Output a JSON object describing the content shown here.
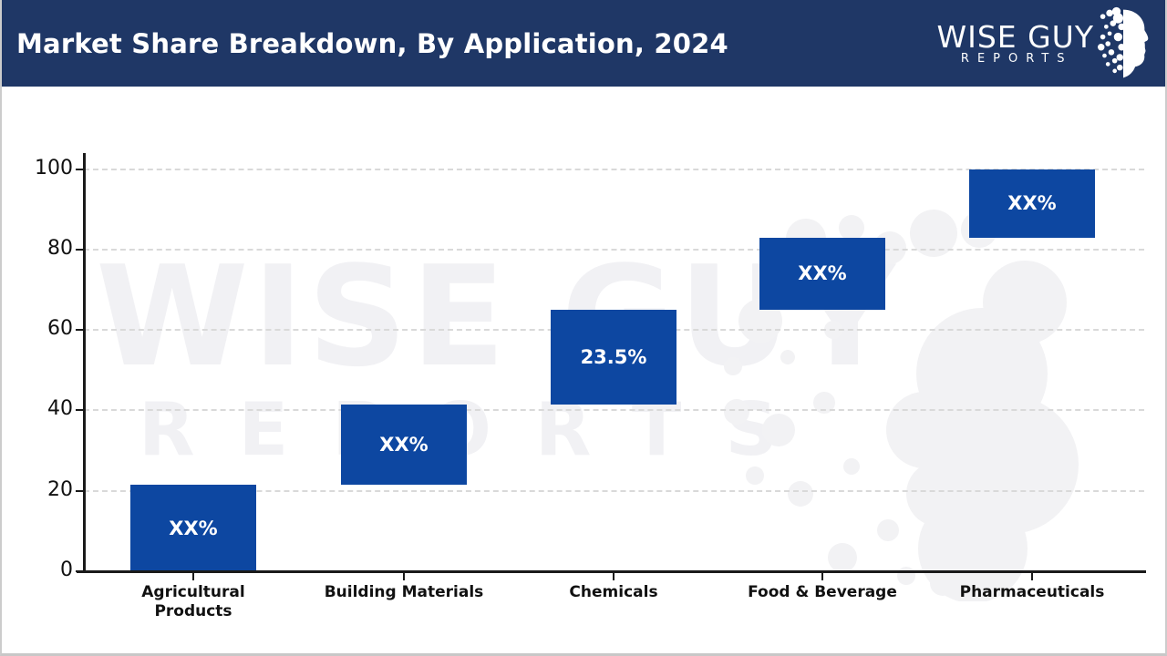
{
  "header": {
    "title": "Market Share Breakdown, By Application, 2024",
    "logo": {
      "line1": "WISE GUY",
      "line2": "REPORTS"
    }
  },
  "watermark": {
    "line1": "WISE GUY",
    "line2": "REPORTS"
  },
  "colors": {
    "header_bg": "#1f3766",
    "bar": "#0d47a1",
    "grid": "#d9d9d9",
    "axis": "#1a1a1a",
    "watermark": "#f1f1f4",
    "text_on_bar": "#ffffff"
  },
  "chart_data": {
    "type": "bar",
    "variant": "floating-waterfall",
    "title": "Market Share Breakdown, By Application, 2024",
    "categories": [
      "Agricultural\nProducts",
      "Building Materials",
      "Chemicals",
      "Food & Beverage",
      "Pharmaceuticals"
    ],
    "bars": [
      {
        "category": "Agricultural Products",
        "start": 0,
        "end": 21.5,
        "value": 21.5,
        "label": "XX%"
      },
      {
        "category": "Building Materials",
        "start": 21.5,
        "end": 41.5,
        "value": 20,
        "label": "XX%"
      },
      {
        "category": "Chemicals",
        "start": 41.5,
        "end": 65,
        "value": 23.5,
        "label": "23.5%"
      },
      {
        "category": "Food & Beverage",
        "start": 65,
        "end": 83,
        "value": 18,
        "label": "XX%"
      },
      {
        "category": "Pharmaceuticals",
        "start": 83,
        "end": 100,
        "value": 17,
        "label": "XX%"
      }
    ],
    "xlabel": "",
    "ylabel": "",
    "ylim": [
      0,
      100
    ],
    "yticks": [
      0,
      20,
      40,
      60,
      80,
      100
    ],
    "grid": "horizontal-dashed",
    "legend": "none"
  }
}
